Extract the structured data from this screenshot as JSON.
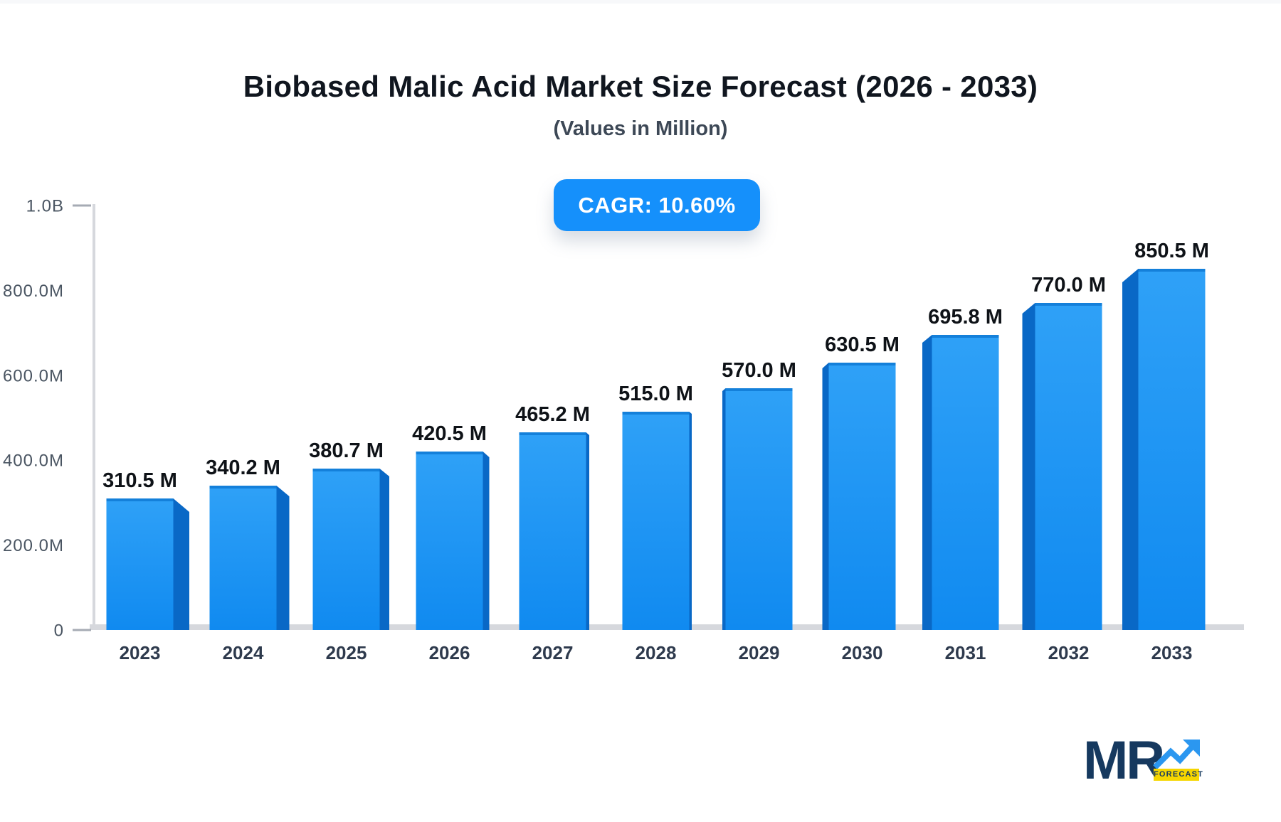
{
  "chart_data": {
    "type": "bar",
    "title": "Biobased Malic Acid Market Size Forecast (2026 - 2033)",
    "subtitle": "(Values in Million)",
    "cagr_badge": "CAGR: 10.60%",
    "categories": [
      "2023",
      "2024",
      "2025",
      "2026",
      "2027",
      "2028",
      "2029",
      "2030",
      "2031",
      "2032",
      "2033"
    ],
    "values": [
      310.5,
      340.2,
      380.7,
      420.5,
      465.2,
      515.0,
      570.0,
      630.5,
      695.8,
      770.0,
      850.5
    ],
    "value_labels": [
      "310.5 M",
      "340.2 M",
      "380.7 M",
      "420.5 M",
      "465.2 M",
      "515.0 M",
      "570.0 M",
      "630.5 M",
      "695.8 M",
      "770.0 M",
      "850.5 M"
    ],
    "xlabel": "",
    "ylabel": "",
    "ylim": [
      0,
      1000
    ],
    "yticks": [
      {
        "value": 1000,
        "label": "1.0B",
        "dash": true
      },
      {
        "value": 800,
        "label": "800.0M",
        "dash": false
      },
      {
        "value": 600,
        "label": "600.0M",
        "dash": false
      },
      {
        "value": 400,
        "label": "400.0M",
        "dash": false
      },
      {
        "value": 200,
        "label": "200.0M",
        "dash": false
      },
      {
        "value": 0,
        "label": "0",
        "dash": true
      }
    ],
    "grid": false,
    "legend_position": "none",
    "style_3d": true
  },
  "colors": {
    "badge_bg": "#1590fb",
    "badge_text": "#ffffff",
    "bar_face_top": "#2fa1f7",
    "bar_face_bottom": "#108af0",
    "bar_side": "#0968c6",
    "bar_edge": "#1480da",
    "axis_gray": "#d6d8dd",
    "tick_dash": "#a6abb4",
    "logo_navy": "#16395f",
    "logo_yellow": "#f6d600",
    "logo_arrow_blue": "#2b97f0"
  },
  "logo": {
    "text": "MR",
    "tag": "FORECAST"
  }
}
